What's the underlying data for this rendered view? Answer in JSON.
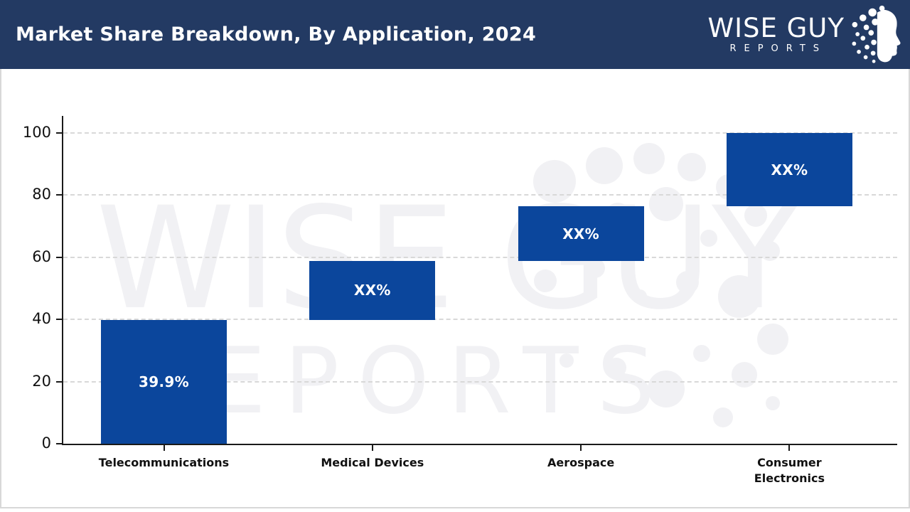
{
  "header": {
    "title": "Market Share Breakdown, By Application, 2024",
    "logo": {
      "brand_line1": "WISE GUY",
      "brand_line2": "REPORTS",
      "face_icon": "wiseguy-face-icon"
    }
  },
  "watermark": {
    "line1": "WISE GUY",
    "line2": "REPORTS"
  },
  "colors": {
    "header_bg": "#233A63",
    "bar": "#0B469C",
    "gridline": "#D8D8D8",
    "axis": "#1A1A1A",
    "watermark": "#F1F1F4"
  },
  "chart_data": {
    "type": "bar",
    "subtype": "waterfall",
    "title": "Market Share Breakdown, By Application, 2024",
    "orientation": "vertical",
    "categories": [
      "Telecommunications",
      "Medical Devices",
      "Aerospace",
      "Consumer\nElectronics"
    ],
    "bars": [
      {
        "category": "Telecommunications",
        "start": 0,
        "end": 39.9,
        "value_label": "39.9%"
      },
      {
        "category": "Medical Devices",
        "start": 39.9,
        "end": 58.8,
        "value_label": "XX%"
      },
      {
        "category": "Aerospace",
        "start": 58.8,
        "end": 76.4,
        "value_label": "XX%"
      },
      {
        "category": "Consumer Electronics",
        "start": 76.4,
        "end": 100,
        "value_label": "XX%"
      }
    ],
    "ylim": [
      0,
      100
    ],
    "yticks": [
      0,
      20,
      40,
      60,
      80,
      100
    ],
    "grid": "horizontal-dashed",
    "legend": "none",
    "bar_color": "#0B469C",
    "value_label_color": "#FFFFFF"
  }
}
